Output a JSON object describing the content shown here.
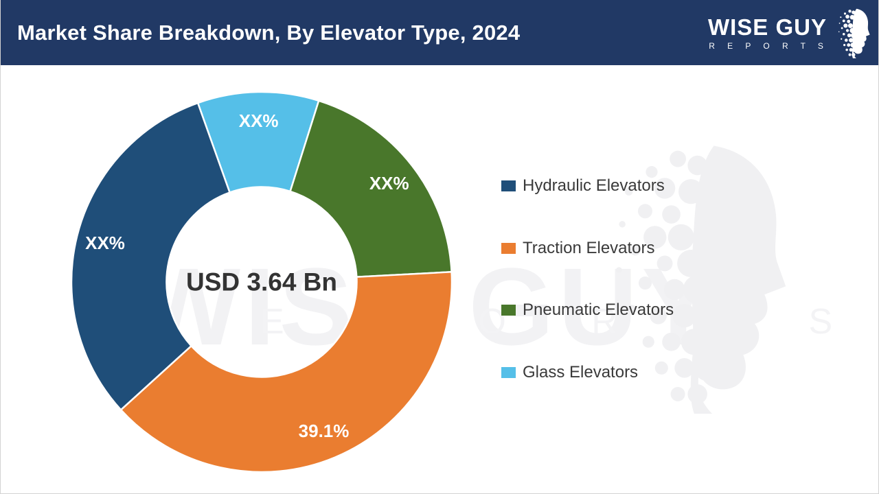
{
  "header": {
    "title": "Market Share Breakdown, By Elevator Type, 2024",
    "bg_color": "#213965",
    "logo": {
      "line1": "WISE GUY",
      "line2": "R E P O R T S"
    }
  },
  "watermark": {
    "line1": "WISE GUY",
    "line2": "R E P O R T S"
  },
  "chart_data": {
    "type": "pie",
    "subtype": "donut",
    "title": "Market Share Breakdown, By Elevator Type, 2024",
    "center_label": "USD 3.64 Bn",
    "start_angle_deg": -19.6,
    "inner_radius_ratio": 0.5,
    "slice_label_color": "#ffffff",
    "separator_color": "#ffffff",
    "segments": [
      {
        "name": "Glass Elevators",
        "display_label": "XX%",
        "pct_estimate": 10.3,
        "color": "#55bfe8"
      },
      {
        "name": "Pneumatic Elevators",
        "display_label": "XX%",
        "pct_estimate": 19.3,
        "color": "#49772b"
      },
      {
        "name": "Traction Elevators",
        "display_label": "39.1%",
        "pct_estimate": 39.1,
        "color": "#ea7d30"
      },
      {
        "name": "Hydraulic Elevators",
        "display_label": "XX%",
        "pct_estimate": 31.3,
        "color": "#1f4e79"
      }
    ],
    "legend": [
      {
        "name": "Hydraulic Elevators",
        "color": "#1f4e79"
      },
      {
        "name": "Traction Elevators",
        "color": "#ea7d30"
      },
      {
        "name": "Pneumatic Elevators",
        "color": "#49772b"
      },
      {
        "name": "Glass Elevators",
        "color": "#55bfe8"
      }
    ],
    "legend_position": "right",
    "center_label_color": "#333333"
  }
}
